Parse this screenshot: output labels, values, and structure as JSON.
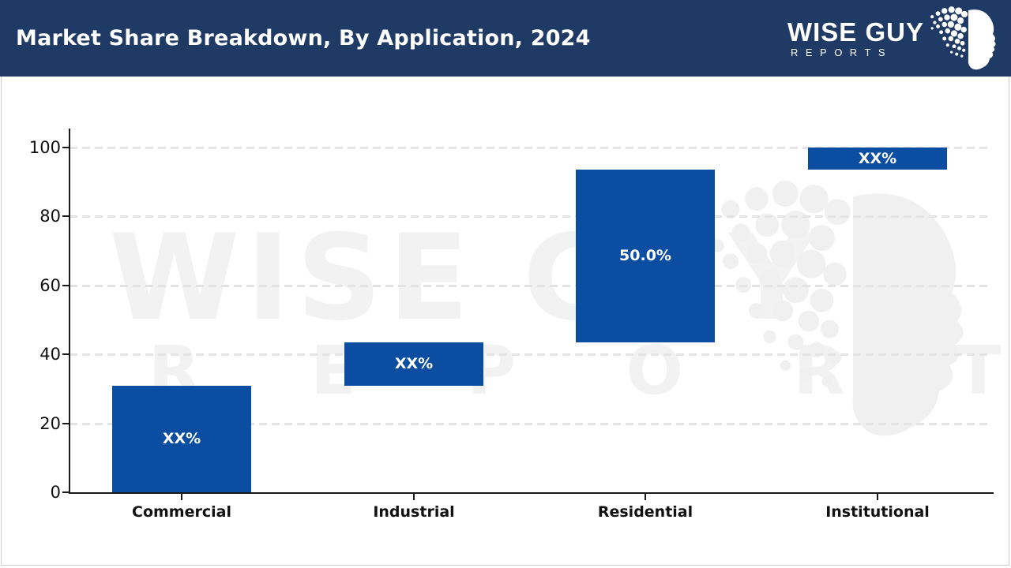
{
  "header": {
    "title": "Market Share Breakdown, By Application, 2024",
    "bg_color": "#1F3A64",
    "logo": {
      "wordmark": "WISE GUY",
      "subtitle": "REPORTS"
    }
  },
  "watermark": {
    "wordmark": "WISE GUY",
    "subtitle": "R E P O R T S"
  },
  "chart_data": {
    "type": "bar",
    "subtype": "waterfall",
    "title": "Market Share Breakdown, By Application, 2024",
    "categories": [
      "Commercial",
      "Industrial",
      "Residential",
      "Institutional"
    ],
    "bars": [
      {
        "category": "Commercial",
        "start": 0,
        "end": 31,
        "label": "XX%"
      },
      {
        "category": "Industrial",
        "start": 31,
        "end": 43.5,
        "label": "XX%"
      },
      {
        "category": "Residential",
        "start": 43.5,
        "end": 93.5,
        "label": "50.0%"
      },
      {
        "category": "Institutional",
        "start": 93.5,
        "end": 100,
        "label": "XX%"
      }
    ],
    "yticks": [
      0,
      20,
      40,
      60,
      80,
      100
    ],
    "ylim": [
      0,
      105
    ],
    "xlabel": "",
    "ylabel": "",
    "grid": "horizontal-dashed",
    "legend": "none",
    "bar_color": "#0B4DA1",
    "bar_label_color": "#FFFFFF",
    "axis_color": "#1A1A1A"
  }
}
